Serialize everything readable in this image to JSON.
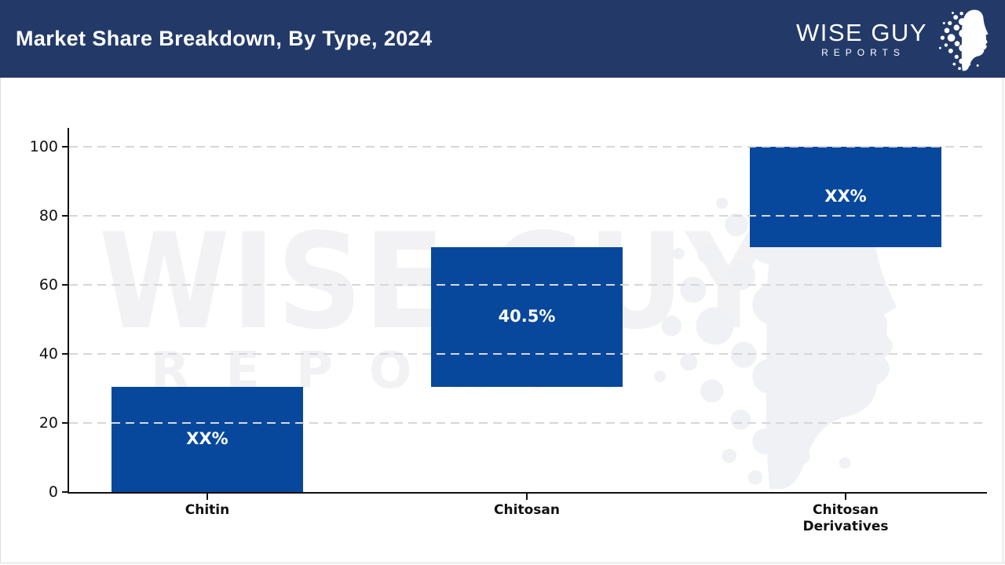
{
  "header": {
    "title": "Market Share Breakdown, By Type, 2024",
    "logo": {
      "line1": "WISE GUY",
      "line2": "REPORTS"
    }
  },
  "watermark": {
    "line1": "WISE GUY",
    "line2": "REPORTS"
  },
  "chart_data": {
    "type": "bar",
    "subtype": "waterfall",
    "title": "Market Share Breakdown, By Type, 2024",
    "categories": [
      "Chitin",
      "Chitosan",
      "Chitosan\nDerivatives"
    ],
    "values": [
      30.5,
      40.5,
      29
    ],
    "segments": [
      {
        "category": "Chitin",
        "start": 0,
        "end": 30.5,
        "label": "XX%"
      },
      {
        "category": "Chitosan",
        "start": 30.5,
        "end": 71,
        "label": "40.5%"
      },
      {
        "category": "Chitosan Derivatives",
        "start": 71,
        "end": 100,
        "label": "XX%"
      }
    ],
    "xlabel": "",
    "ylabel": "",
    "ylim": [
      0,
      100
    ],
    "yticks": [
      0,
      20,
      40,
      60,
      80,
      100
    ],
    "grid": "horizontal-dashed",
    "legend": "none"
  },
  "colors": {
    "header_bg": "#233A69",
    "bar": "#07489C",
    "grid": "#d7d7d7",
    "axis": "#111111",
    "bar_label": "#ffffff",
    "tick_label": "#111111",
    "watermark": "#f2f2f5"
  }
}
